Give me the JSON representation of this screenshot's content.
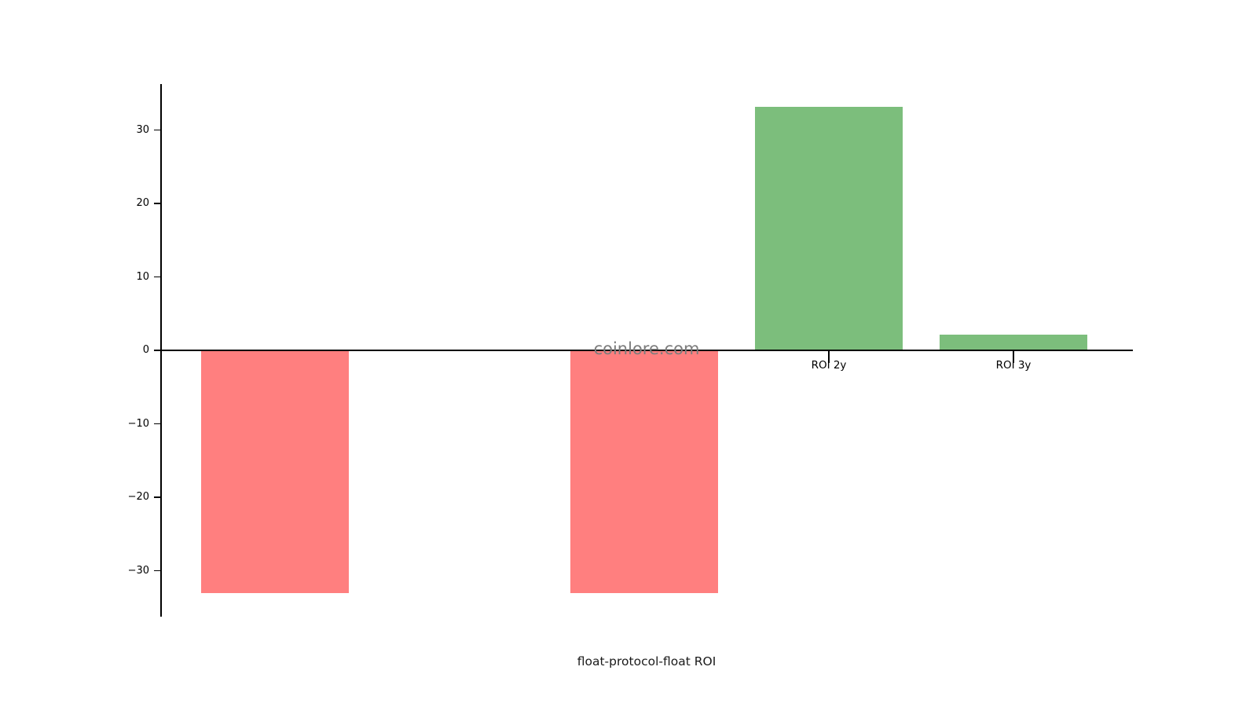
{
  "title": "float-protocol-float ROI",
  "watermark": "coinlore.com",
  "chart_data": {
    "type": "bar",
    "title": "float-protocol-float ROI",
    "xlabel": "",
    "ylabel": "",
    "watermark": "coinlore.com",
    "grid": false,
    "legend": null,
    "ylim": [
      -36.5,
      36.5
    ],
    "yticks": [
      30,
      20,
      10,
      0,
      -10,
      -20,
      -30
    ],
    "categories": [
      "",
      "",
      "ROI 2y",
      "ROI 3y"
    ],
    "values": [
      -33,
      -33,
      33,
      2
    ],
    "bars": [
      {
        "label": "",
        "value": -33,
        "slot": 0,
        "color": "#ff7f7f"
      },
      {
        "label": "",
        "value": -33,
        "slot": 2,
        "color": "#ff7f7f"
      },
      {
        "label": "ROI 2y",
        "value": 33,
        "slot": 3,
        "color": "#7cbe7c"
      },
      {
        "label": "ROI 3y",
        "value": 2,
        "slot": 4,
        "color": "#7cbe7c"
      }
    ],
    "colors": {
      "negative": "#ff7f7f",
      "positive": "#7cbe7c",
      "axis": "#000000",
      "watermark": "#7d7d7d"
    }
  }
}
